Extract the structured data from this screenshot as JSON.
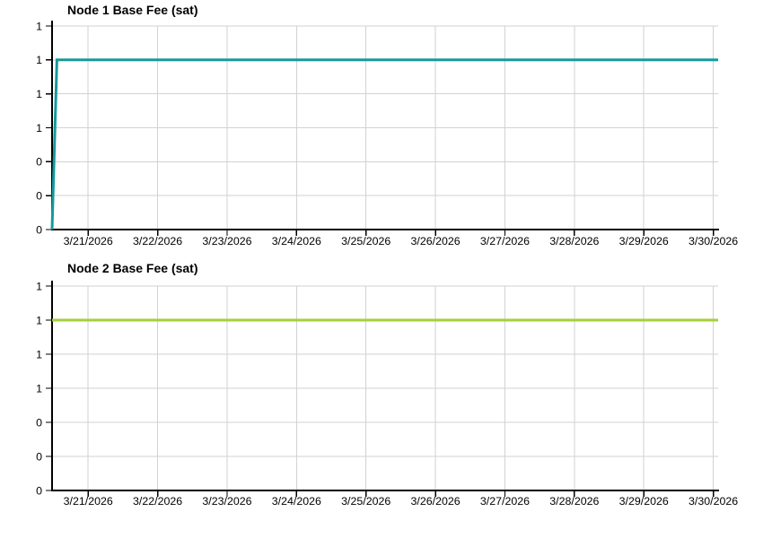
{
  "page": {
    "background": "#ffffff"
  },
  "colors": {
    "grid": "#d2d2d2",
    "axis": "#000000",
    "tick_text": "#000000",
    "node1_line": "#169a9c",
    "node2_line": "#a4cf3a"
  },
  "chart_data": [
    {
      "type": "line",
      "title": "Node 1 Base Fee (sat)",
      "line_color": "#169a9c",
      "grid": true,
      "legend": "none",
      "x_tick_labels": [
        "3/21/2026",
        "3/22/2026",
        "3/23/2026",
        "3/24/2026",
        "3/25/2026",
        "3/26/2026",
        "3/27/2026",
        "3/28/2026",
        "3/29/2026",
        "3/30/2026"
      ],
      "y_tick_labels_top_to_bottom": [
        "1",
        "1",
        "1",
        "1",
        "0",
        "0",
        "0"
      ],
      "y_min": 0,
      "y_max": 1.2,
      "y_tick_step": 0.2,
      "x_domain_days_relative_to_first_tick": [
        -0.52,
        9.07
      ],
      "series": [
        {
          "name": "Node 1 base fee",
          "points": [
            [
              -0.52,
              0
            ],
            [
              -0.45,
              1
            ],
            [
              9.07,
              1
            ]
          ]
        }
      ]
    },
    {
      "type": "line",
      "title": "Node 2 Base Fee (sat)",
      "line_color": "#a4cf3a",
      "grid": true,
      "legend": "none",
      "x_tick_labels": [
        "3/21/2026",
        "3/22/2026",
        "3/23/2026",
        "3/24/2026",
        "3/25/2026",
        "3/26/2026",
        "3/27/2026",
        "3/28/2026",
        "3/29/2026",
        "3/30/2026"
      ],
      "y_tick_labels_top_to_bottom": [
        "1",
        "1",
        "1",
        "1",
        "0",
        "0",
        "0"
      ],
      "y_min": 0,
      "y_max": 1.2,
      "y_tick_step": 0.2,
      "x_domain_days_relative_to_first_tick": [
        -0.52,
        9.07
      ],
      "series": [
        {
          "name": "Node 2 base fee",
          "points": [
            [
              -0.52,
              1
            ],
            [
              9.07,
              1
            ]
          ]
        }
      ]
    }
  ]
}
